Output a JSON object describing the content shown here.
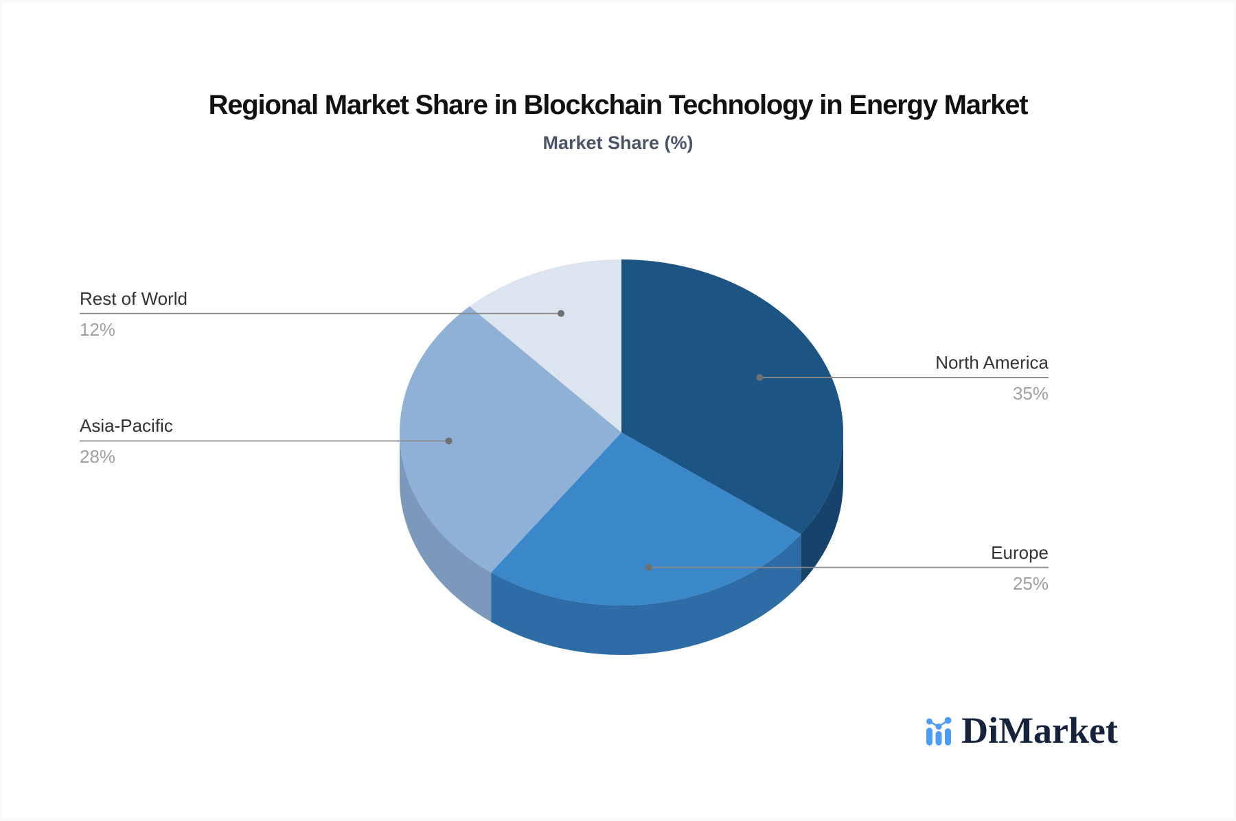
{
  "window": {
    "edge_color": "#F7F9FA"
  },
  "chart_data": {
    "type": "pie",
    "style": "pie-3d",
    "title": "Regional Market Share in Blockchain Technology in Energy Market",
    "subtitle": "Market Share (%)",
    "unit": "%",
    "start_angle_deg": 0,
    "direction": "clockwise",
    "legend_position": "none",
    "labels": "callout-lines",
    "title_color": "#111111",
    "subtitle_color": "#4A5568",
    "label_name_color": "#333333",
    "label_value_color": "#A0A0A0",
    "callout_line_color": "#8A8A8A",
    "callout_dot_color": "#707070",
    "slices": [
      {
        "label": "North America",
        "value": 35,
        "value_label": "35%",
        "color": "#1C5484",
        "side_color": "#15436B"
      },
      {
        "label": "Europe",
        "value": 25,
        "value_label": "25%",
        "color": "#3A88CA",
        "side_color": "#2D6CA4"
      },
      {
        "label": "Asia-Pacific",
        "value": 28,
        "value_label": "28%",
        "color": "#90B1D6",
        "side_color": "#7C99BB"
      },
      {
        "label": "Rest of World",
        "value": 12,
        "value_label": "12%",
        "color": "#DCE4EF",
        "side_color": null
      }
    ]
  },
  "branding": {
    "logo_text": "DiMarket",
    "logo_text_color": "#15233C",
    "logo_icon": "bar-chart-with-dots-icon",
    "logo_icon_color": "#4D9CF6"
  }
}
